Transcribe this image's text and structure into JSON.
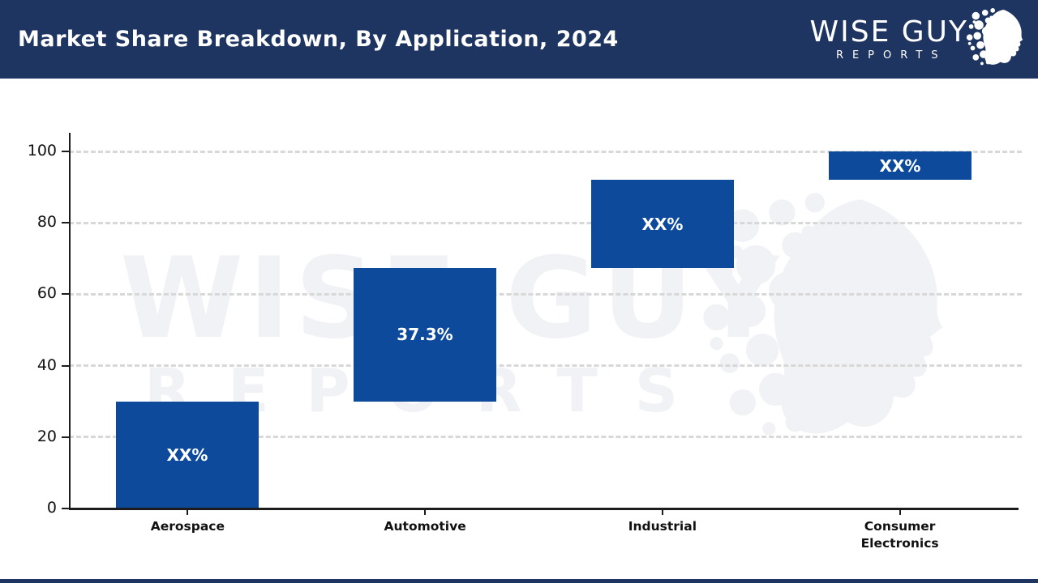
{
  "header": {
    "title": "Market Share Breakdown, By Application, 2024",
    "logo_line1": "WISE GUY",
    "logo_line2": "REPORTS"
  },
  "watermark": {
    "line1": "WISE GUY",
    "line2": "REPORTS"
  },
  "colors": {
    "header_bg": "#1f3561",
    "footer_bg": "#1f3561",
    "bar": "#0d4a9c",
    "bar_label": "#ffffff",
    "watermark": "#f1f2f5",
    "axis": "#1c1c1c",
    "grid": "#d8d8d8"
  },
  "chart_data": {
    "type": "bar",
    "subtype": "waterfall",
    "title": "Market Share Breakdown, By Application, 2024",
    "xlabel": "",
    "ylabel": "",
    "ylim": [
      0,
      100
    ],
    "yticks": [
      0,
      20,
      40,
      60,
      80,
      100
    ],
    "grid": "horizontal-dashed",
    "legend": "none",
    "categories": [
      "Aerospace",
      "Automotive",
      "Industrial",
      "Consumer Electronics"
    ],
    "segments": [
      {
        "category": "Aerospace",
        "start": 0,
        "end": 30,
        "value_label": "XX%"
      },
      {
        "category": "Automotive",
        "start": 30,
        "end": 67.3,
        "value_label": "37.3%"
      },
      {
        "category": "Industrial",
        "start": 67.3,
        "end": 92,
        "value_label": "XX%"
      },
      {
        "category": "Consumer Electronics",
        "start": 92,
        "end": 100,
        "value_label": "XX%"
      }
    ]
  }
}
